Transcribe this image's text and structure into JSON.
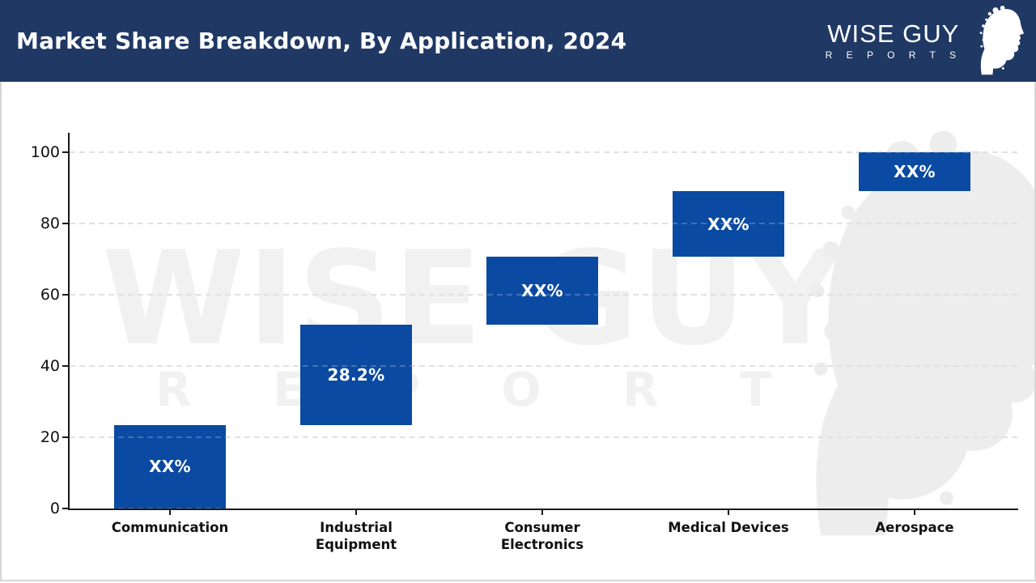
{
  "header": {
    "title": "Market Share Breakdown, By Application, 2024",
    "logo": {
      "primary": "WISE GUY",
      "secondary": "R E P O R T S"
    }
  },
  "watermark": {
    "primary": "WISE GUY",
    "secondary": "R E P O R T S"
  },
  "colors": {
    "header_bg": "#1F3864",
    "bar": "#0B4AA2",
    "bar_label": "#FFFFFF",
    "grid": "#D9D9D9",
    "axis": "#1A1A1A",
    "watermark": "#F1F1F1"
  },
  "chart_data": {
    "type": "bar",
    "subtype": "waterfall",
    "title": "Market Share Breakdown, By Application, 2024",
    "xlabel": "",
    "ylabel": "",
    "categories": [
      "Communication",
      "Industrial\nEquipment",
      "Consumer\nElectronics",
      "Medical Devices",
      "Aerospace"
    ],
    "segments": [
      {
        "category": "Communication",
        "start": 0,
        "end": 23.5,
        "label": "XX%"
      },
      {
        "category": "Industrial Equipment",
        "start": 23.5,
        "end": 51.7,
        "label": "28.2%"
      },
      {
        "category": "Consumer Electronics",
        "start": 51.7,
        "end": 70.6,
        "label": "XX%"
      },
      {
        "category": "Medical Devices",
        "start": 70.6,
        "end": 89.1,
        "label": "XX%"
      },
      {
        "category": "Aerospace",
        "start": 89.1,
        "end": 100,
        "label": "XX%"
      }
    ],
    "ytick_labels": [
      "0",
      "20",
      "40",
      "60",
      "80",
      "100"
    ],
    "yticks": [
      0,
      20,
      40,
      60,
      80,
      100
    ],
    "ylim": [
      0,
      105.5
    ],
    "grid": "horizontal-dashed",
    "legend": "none"
  }
}
